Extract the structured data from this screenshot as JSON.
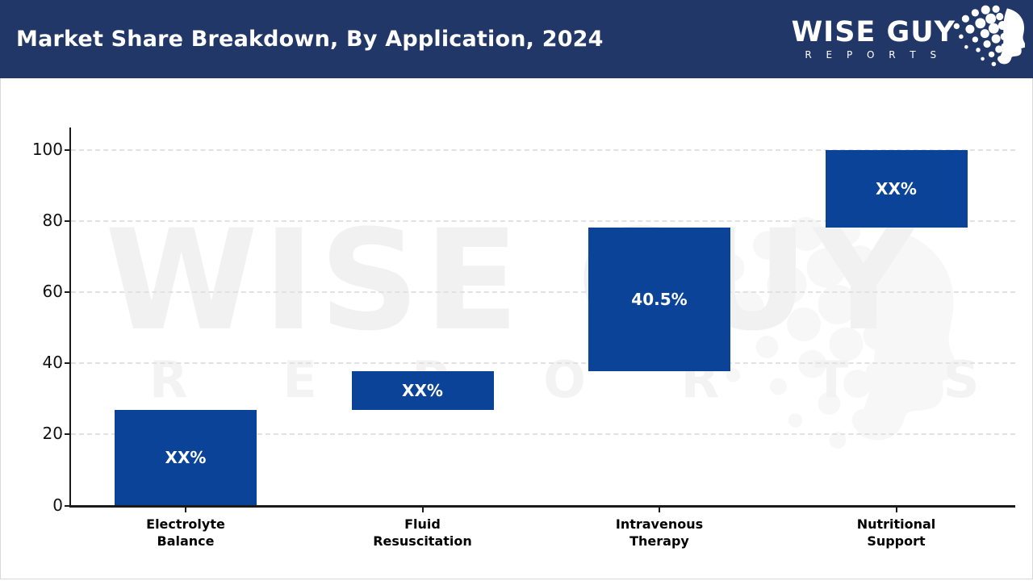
{
  "page": {
    "background": "#ffffff",
    "frame_border_color": "#d9d9d9"
  },
  "header": {
    "bg": "#203767",
    "title": "Market Share Breakdown, By Application, 2024",
    "title_color": "#ffffff",
    "logo_text": "WISE GUY",
    "logo_subtext": "R E P O R T S"
  },
  "watermark": {
    "text1": "WISE GUY",
    "text2": "R E P O R T S",
    "color": "#f1f1f1"
  },
  "chart_data": {
    "type": "bar",
    "subtype": "waterfall",
    "title": "Market Share Breakdown, By Application, 2024",
    "xlabel": "",
    "ylabel": "",
    "ylim": [
      0,
      100
    ],
    "yticks": [
      0,
      20,
      40,
      60,
      80,
      100
    ],
    "grid": "horizontal-dashed",
    "legend": "none",
    "bar_color": "#0b4399",
    "value_label_color": "#ffffff",
    "axis_color": "#1a1a1a",
    "tick_label_color": "#111111",
    "categories": [
      "Electrolyte\nBalance",
      "Fluid\nResuscitation",
      "Intravenous\nTherapy",
      "Nutritional\nSupport"
    ],
    "segments": [
      {
        "category": "Electrolyte Balance",
        "start": 0,
        "end": 26.8,
        "height": 26.8,
        "value_label": "XX%"
      },
      {
        "category": "Fluid Resuscitation",
        "start": 26.8,
        "end": 37.7,
        "height": 10.9,
        "value_label": "XX%"
      },
      {
        "category": "Intravenous Therapy",
        "start": 37.7,
        "end": 78.2,
        "height": 40.5,
        "value_label": "40.5%"
      },
      {
        "category": "Nutritional Support",
        "start": 78.2,
        "end": 100,
        "height": 21.8,
        "value_label": "XX%"
      }
    ]
  }
}
